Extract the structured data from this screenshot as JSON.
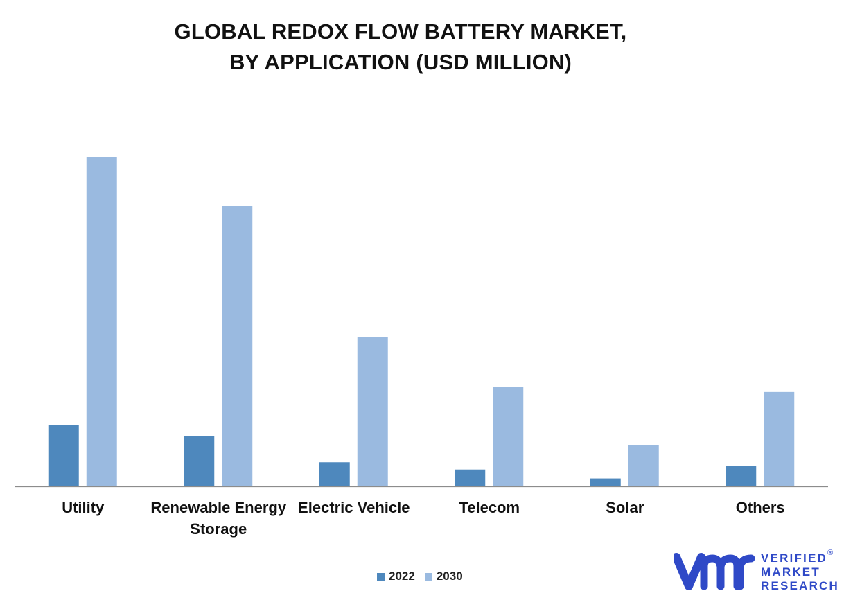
{
  "chart_data": {
    "type": "bar",
    "title_lines": [
      "GLOBAL REDOX FLOW BATTERY MARKET,",
      "BY APPLICATION (USD MILLION)"
    ],
    "categories": [
      [
        "Utility"
      ],
      [
        "Renewable Energy",
        "Storage"
      ],
      [
        "Electric Vehicle"
      ],
      [
        "Telecom"
      ],
      [
        "Solar"
      ],
      [
        "Others"
      ]
    ],
    "series": [
      {
        "name": "2022",
        "color": "#4e88bd",
        "values": [
          18.5,
          15.2,
          7.3,
          5.1,
          2.4,
          6.1
        ]
      },
      {
        "name": "2030",
        "color": "#9abae0",
        "values": [
          100,
          85.0,
          45.2,
          30.1,
          12.6,
          28.6
        ]
      }
    ],
    "ylim": [
      0,
      100
    ],
    "grid": false,
    "legend_position": "bottom"
  },
  "logo": {
    "lines": [
      "VERIFIED",
      "MARKET",
      "RESEARCH"
    ],
    "reg_mark": "®",
    "color": "#2f49c7"
  }
}
